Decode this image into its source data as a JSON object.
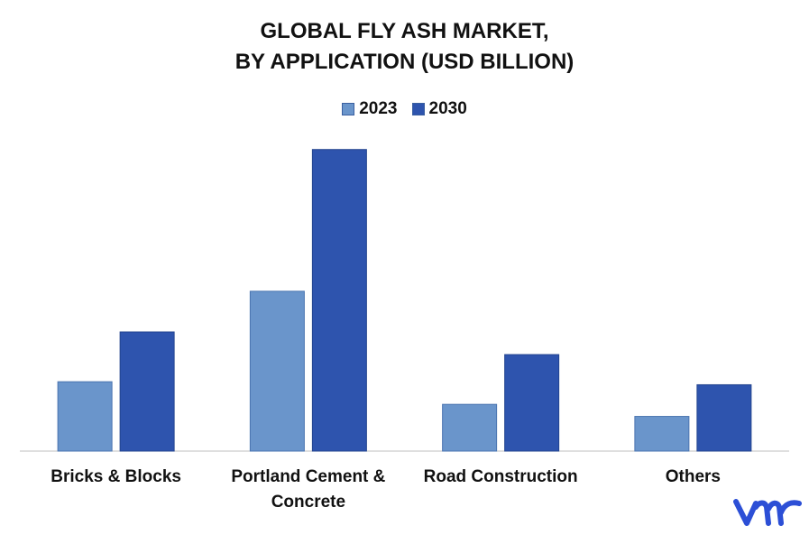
{
  "chart_data": {
    "type": "bar",
    "title_line1": "GLOBAL FLY ASH MARKET,",
    "title_line2": "BY APPLICATION (USD BILLION)",
    "categories": [
      "Bricks & Blocks",
      "Portland Cement & Concrete",
      "Road Construction",
      "Others"
    ],
    "category_lines": [
      [
        "Bricks & Blocks"
      ],
      [
        "Portland Cement &",
        "Concrete"
      ],
      [
        "Road Construction"
      ],
      [
        "Others"
      ]
    ],
    "series": [
      {
        "name": "2023",
        "color": "#6a95cb",
        "values": [
          2.3,
          5.3,
          1.55,
          1.15
        ]
      },
      {
        "name": "2030",
        "color": "#2e54ae",
        "values": [
          3.95,
          10.0,
          3.2,
          2.2
        ]
      }
    ],
    "ylim": [
      0,
      10.5
    ],
    "grid": false,
    "legend_position": "top-center"
  },
  "logo": {
    "text": "vmr",
    "color": "#2c4fd6"
  }
}
